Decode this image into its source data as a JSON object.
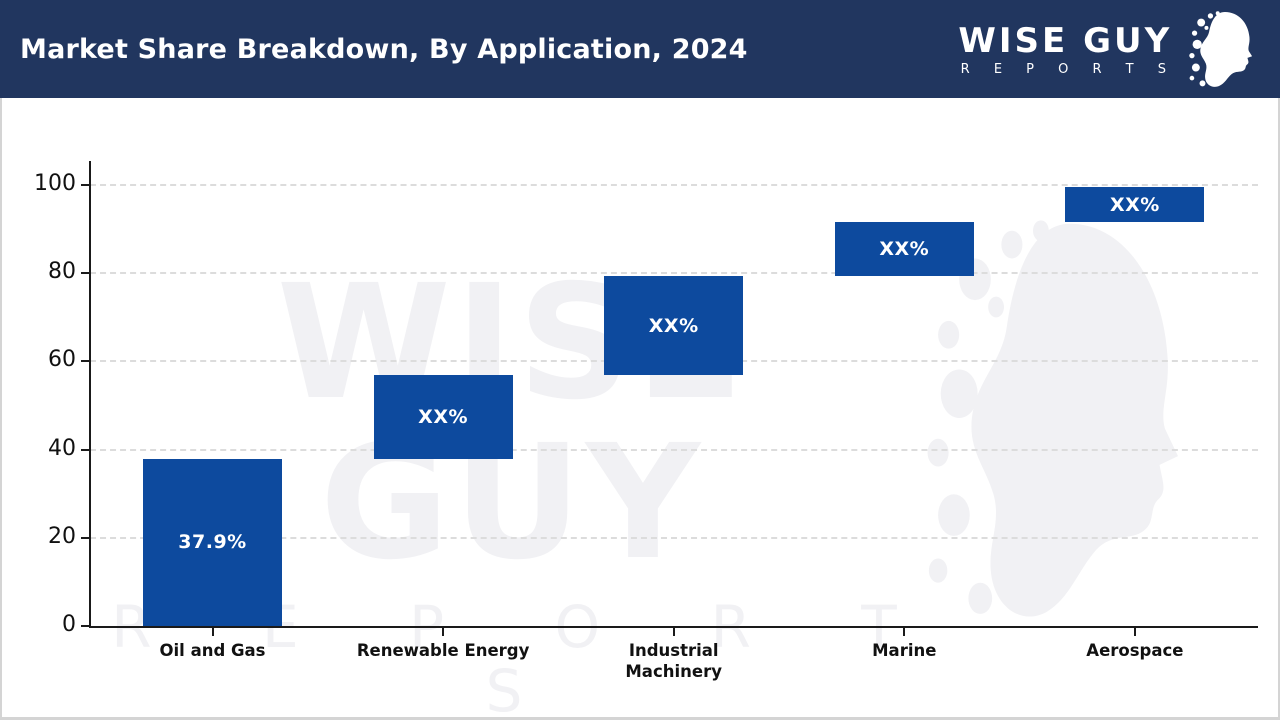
{
  "header": {
    "title": "Market Share Breakdown, By Application, 2024",
    "bg_color": "#21365f",
    "logo": {
      "line1": "WISE GUY",
      "line2": "R E P O R T S"
    }
  },
  "watermark": {
    "line1": "WISE GUY",
    "line2": "R E P O R T S"
  },
  "chart_data": {
    "type": "bar",
    "subtype": "waterfall",
    "title": "Market Share Breakdown, By Application, 2024",
    "categories": [
      "Oil and Gas",
      "Renewable Energy",
      "Industrial Machinery",
      "Marine",
      "Aerospace"
    ],
    "segments": [
      {
        "category": "Oil and Gas",
        "start": 0,
        "end": 37.9,
        "label": "37.9%"
      },
      {
        "category": "Renewable Energy",
        "start": 37.9,
        "end": 56.9,
        "label": "XX%"
      },
      {
        "category": "Industrial Machinery",
        "start": 56.9,
        "end": 79.3,
        "label": "XX%"
      },
      {
        "category": "Marine",
        "start": 79.3,
        "end": 91.5,
        "label": "XX%"
      },
      {
        "category": "Aerospace",
        "start": 91.5,
        "end": 99.6,
        "label": "XX%"
      }
    ],
    "yticks": [
      0,
      20,
      40,
      60,
      80,
      100
    ],
    "ylim": [
      0,
      105
    ],
    "grid": "horizontal-dashed",
    "bar_color": "#0d4a9e",
    "bar_label_color": "#ffffff",
    "axis_color": "#1a1a1a",
    "grid_color": "#dcdcdc"
  }
}
